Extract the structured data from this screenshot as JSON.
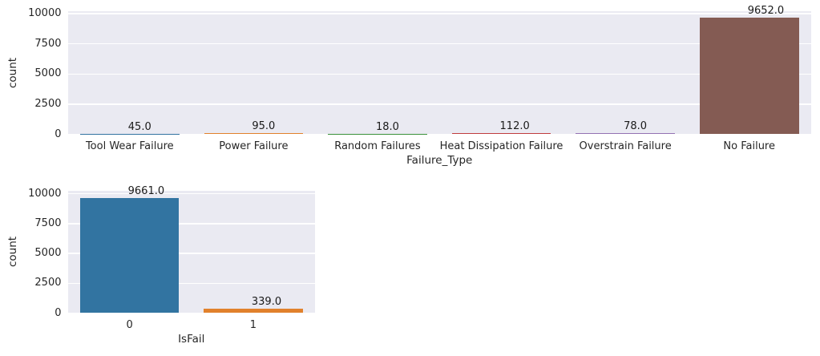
{
  "figure": {
    "background": "#ffffff",
    "plot_background": "#eaeaf2",
    "grid_color": "#ffffff",
    "text_color": "#262626"
  },
  "chart_data": [
    {
      "type": "bar",
      "name": "failure-type-countplot",
      "title": "",
      "categories": [
        "Tool Wear Failure",
        "Power Failure",
        "Random Failures",
        "Heat Dissipation Failure",
        "Overstrain Failure",
        "No Failure"
      ],
      "values": [
        45.0,
        95.0,
        18.0,
        112.0,
        78.0,
        9652.0
      ],
      "bar_value_labels": [
        "45.0",
        "95.0",
        "18.0",
        "112.0",
        "78.0",
        "9652.0"
      ],
      "xlabel": "Failure_Type",
      "ylabel": "count",
      "yticks": [
        0,
        2500,
        5000,
        7500,
        10000
      ],
      "ytick_labels": [
        "0",
        "2500",
        "5000",
        "7500",
        "10000"
      ],
      "ylim": [
        0,
        10000
      ],
      "bar_colors": [
        "#3274a1",
        "#e1812c",
        "#3a923a",
        "#c03d3e",
        "#9372b2",
        "#845b53"
      ],
      "grid": true,
      "legend": "none",
      "plot_background": "#eaeaf2"
    },
    {
      "type": "bar",
      "name": "isfail-countplot",
      "title": "",
      "categories": [
        "0",
        "1"
      ],
      "values": [
        9661.0,
        339.0
      ],
      "bar_value_labels": [
        "9661.0",
        "339.0"
      ],
      "xlabel": "IsFail",
      "ylabel": "count",
      "yticks": [
        0,
        2500,
        5000,
        7500,
        10000
      ],
      "ytick_labels": [
        "0",
        "2500",
        "5000",
        "7500",
        "10000"
      ],
      "ylim": [
        0,
        10000
      ],
      "bar_colors": [
        "#3274a1",
        "#e1812c"
      ],
      "grid": true,
      "legend": "none",
      "plot_background": "#eaeaf2"
    }
  ]
}
